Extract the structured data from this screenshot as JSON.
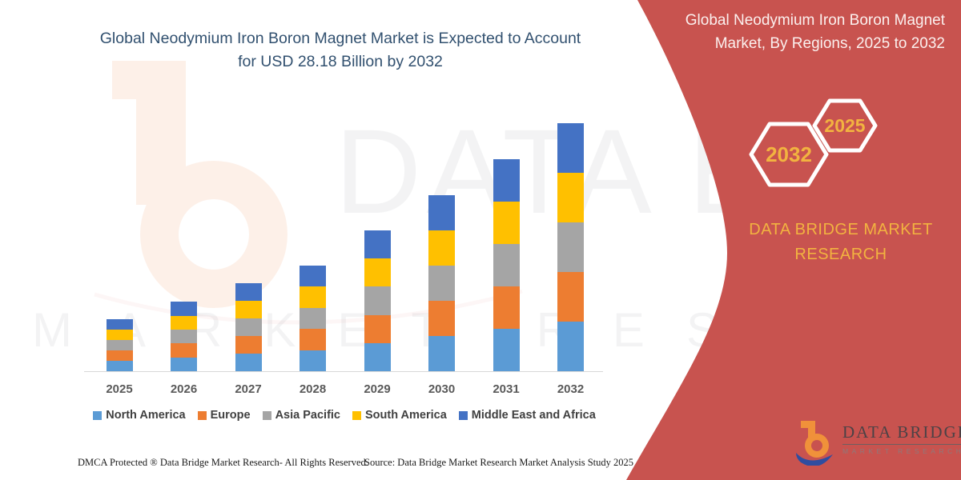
{
  "header": {
    "title": "Global Neodymium Iron Boron Magnet Market is Expected to Account for USD 28.18 Billion by 2032"
  },
  "side_panel": {
    "title": "Global Neodymium Iron Boron Magnet Market, By Regions, 2025 to 2032",
    "hexagon_large": "2032",
    "hexagon_small": "2025",
    "brand_text": "DATA BRIDGE MARKET RESEARCH",
    "panel_color": "#C8534F",
    "accent_color": "#F2B340"
  },
  "watermark": {
    "line1": "DATA BRIDGE",
    "line2": "MARKET RESEARCH"
  },
  "chart_data": {
    "type": "bar",
    "stacked": true,
    "title": "Global Neodymium Iron Boron Magnet Market is Expected to Account for USD 28.18 Billion by 2032",
    "unit": "USD Billion",
    "categories": [
      "2025",
      "2026",
      "2027",
      "2028",
      "2029",
      "2030",
      "2031",
      "2032"
    ],
    "series": [
      {
        "name": "North America",
        "color": "#5B9BD5",
        "values": [
          1.18,
          1.58,
          2.0,
          2.4,
          3.2,
          4.0,
          4.82,
          5.64
        ]
      },
      {
        "name": "Europe",
        "color": "#ED7D31",
        "values": [
          1.18,
          1.58,
          2.0,
          2.4,
          3.2,
          4.0,
          4.82,
          5.64
        ]
      },
      {
        "name": "Asia Pacific",
        "color": "#A5A5A5",
        "values": [
          1.18,
          1.58,
          2.0,
          2.4,
          3.2,
          4.0,
          4.82,
          5.64
        ]
      },
      {
        "name": "South America",
        "color": "#FFC000",
        "values": [
          1.18,
          1.58,
          2.0,
          2.4,
          3.2,
          4.0,
          4.82,
          5.64
        ]
      },
      {
        "name": "Middle East and Africa",
        "color": "#4472C4",
        "values": [
          1.18,
          1.58,
          2.0,
          2.4,
          3.2,
          4.0,
          4.82,
          5.62
        ]
      }
    ],
    "totals": [
      5.9,
      7.9,
      10.0,
      12.0,
      16.0,
      20.0,
      24.1,
      28.18
    ],
    "highlight_value_2032": 28.18,
    "xlabel": "",
    "ylabel": "",
    "y_axis_shown": false,
    "grid": false,
    "legend_position": "bottom"
  },
  "footer": {
    "left": "DMCA Protected ® Data Bridge Market Research-  All Rights Reserved.",
    "source": "Source: Data Bridge Market Research  Market Analysis Study 2025"
  },
  "logo": {
    "name": "DATA BRIDGE",
    "subtitle": "MARKET RESEARCH"
  }
}
